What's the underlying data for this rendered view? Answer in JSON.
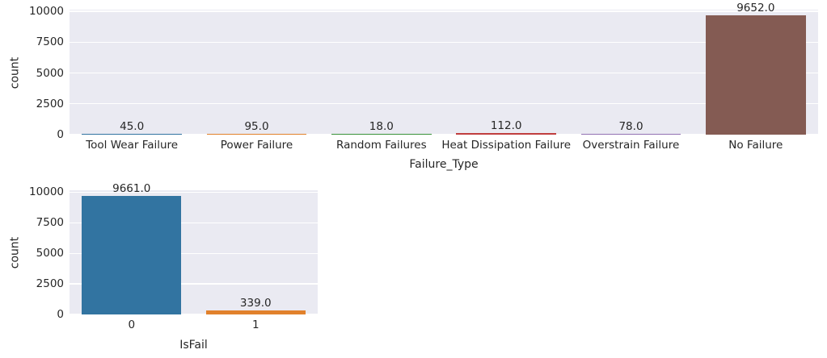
{
  "figure": {
    "background_color": "#FFFFFF",
    "plot_background_color": "#EAEAF2",
    "grid_color": "#FFFFFF",
    "text_color": "#262626"
  },
  "chart_data": [
    {
      "type": "bar",
      "title": "",
      "xlabel": "Failure_Type",
      "ylabel": "count",
      "categories": [
        "Tool Wear Failure",
        "Power Failure",
        "Random Failures",
        "Heat Dissipation Failure",
        "Overstrain Failure",
        "No Failure"
      ],
      "values": [
        45,
        95,
        18,
        112,
        78,
        9652
      ],
      "bar_labels": [
        "45.0",
        "95.0",
        "18.0",
        "112.0",
        "78.0",
        "9652.0"
      ],
      "bar_colors": [
        "#3274A1",
        "#E1812C",
        "#3A923A",
        "#C03D3E",
        "#9372B2",
        "#845B53"
      ],
      "yticks": [
        0,
        2500,
        5000,
        7500,
        10000
      ],
      "ytick_labels": [
        "0",
        "2500",
        "5000",
        "7500",
        "10000"
      ],
      "ylim": [
        0,
        10135
      ],
      "grid": true,
      "legend": null,
      "bar_rel_width": 0.8
    },
    {
      "type": "bar",
      "title": "",
      "xlabel": "IsFail",
      "ylabel": "count",
      "categories": [
        "0",
        "1"
      ],
      "values": [
        9661,
        339
      ],
      "bar_labels": [
        "9661.0",
        "339.0"
      ],
      "bar_colors": [
        "#3274A1",
        "#E1812C"
      ],
      "yticks": [
        0,
        2500,
        5000,
        7500,
        10000
      ],
      "ytick_labels": [
        "0",
        "2500",
        "5000",
        "7500",
        "10000"
      ],
      "ylim": [
        0,
        10145
      ],
      "grid": true,
      "legend": null,
      "bar_rel_width": 0.8
    }
  ]
}
